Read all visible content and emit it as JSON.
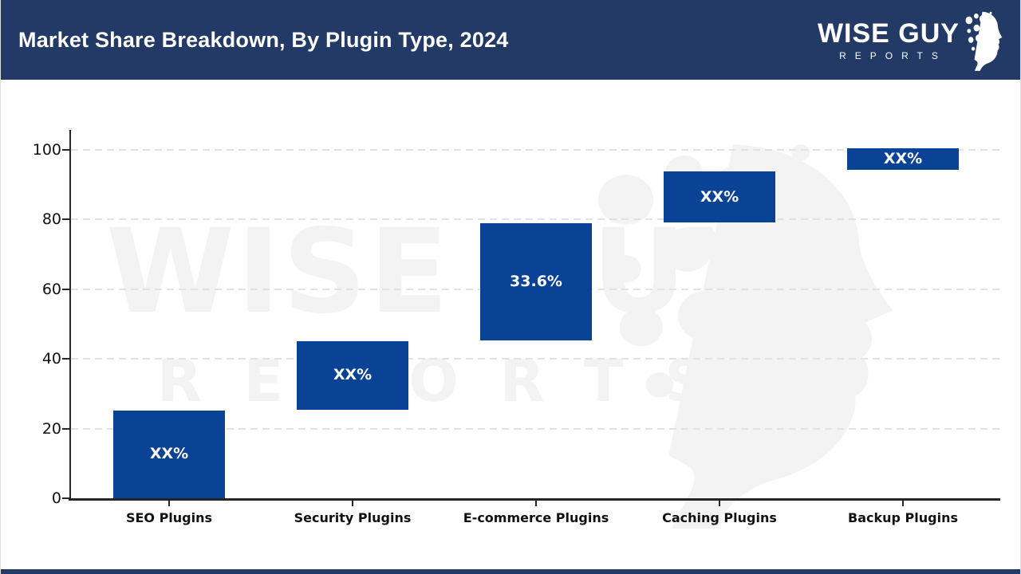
{
  "header": {
    "title": "Market Share Breakdown, By Plugin Type, 2024",
    "logo": {
      "line1": "WISE GUY",
      "line2": "REPORTS"
    }
  },
  "watermark": {
    "line1": "WISE GUY",
    "line2": "REPORTS"
  },
  "colors": {
    "header_bg": "#233a66",
    "bar": "#0a4296",
    "bar_label": "#ffffff",
    "axis": "#262626",
    "grid": "#e2e2e2",
    "tick_text": "#111111",
    "watermark": "#f3f3f3"
  },
  "chart_data": {
    "type": "bar",
    "subtype": "waterfall",
    "title": "Market Share Breakdown, By Plugin Type, 2024",
    "xlabel": "",
    "ylabel": "",
    "ylim": [
      0,
      105
    ],
    "yticks": [
      0,
      20,
      40,
      60,
      80,
      100
    ],
    "grid": "horizontal-dashed",
    "legend": "none",
    "categories": [
      "SEO Plugins",
      "Security Plugins",
      "E-commerce Plugins",
      "Caching Plugins",
      "Backup Plugins"
    ],
    "bars": [
      {
        "category": "SEO Plugins",
        "start": 0,
        "end": 25.2,
        "label": "XX%"
      },
      {
        "category": "Security Plugins",
        "start": 25.4,
        "end": 45.1,
        "label": "XX%"
      },
      {
        "category": "E-commerce Plugins",
        "start": 45.2,
        "end": 78.8,
        "label": "33.6%"
      },
      {
        "category": "Caching Plugins",
        "start": 79.0,
        "end": 93.8,
        "label": "XX%"
      },
      {
        "category": "Backup Plugins",
        "start": 94.2,
        "end": 100.3,
        "label": "XX%"
      }
    ]
  }
}
